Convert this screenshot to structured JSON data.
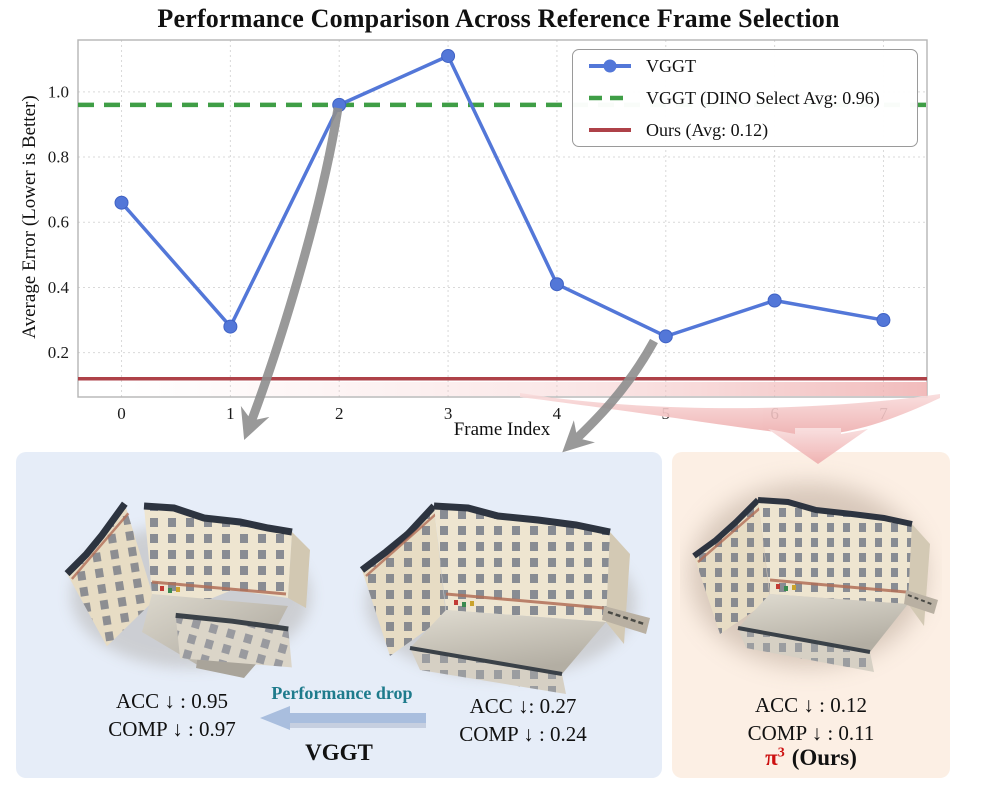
{
  "chart_data": {
    "type": "line",
    "title": "Performance Comparison Across Reference Frame Selection",
    "xlabel": "Frame Index",
    "ylabel": "Average Error (Lower is Better)",
    "x": [
      0,
      1,
      2,
      3,
      4,
      5,
      6,
      7
    ],
    "xticks": [
      0,
      1,
      2,
      3,
      4,
      5,
      6,
      7
    ],
    "yticks": [
      0.2,
      0.4,
      0.6,
      0.8,
      1.0
    ],
    "xlim": [
      -0.4,
      7.4
    ],
    "ylim": [
      0.064,
      1.159
    ],
    "grid": true,
    "legend_position": "upper right",
    "series": [
      {
        "name": "VGGT",
        "style": "solid-marker",
        "color": "#5377d8",
        "values": [
          0.66,
          0.28,
          0.96,
          1.11,
          0.41,
          0.25,
          0.36,
          0.3
        ]
      },
      {
        "name": "VGGT (DINO Select Avg: 0.96)",
        "style": "dashed",
        "color": "#3f9e46",
        "value": 0.96
      },
      {
        "name": "Ours (Avg: 0.12)",
        "style": "solid",
        "color": "#ae4148",
        "value": 0.12
      }
    ]
  },
  "panels": {
    "vggt": {
      "frame2_metrics": {
        "acc": "ACC ↓ : 0.95",
        "comp": "COMP ↓ : 0.97"
      },
      "frame5_metrics": {
        "acc": "ACC ↓: 0.27",
        "comp": "COMP ↓ : 0.24"
      },
      "performance_drop_label": "Performance drop",
      "method_label": "VGGT"
    },
    "ours": {
      "metrics": {
        "acc": "ACC ↓ : 0.12",
        "comp": "COMP ↓ : 0.11"
      },
      "method_pi": "π",
      "method_sup": "3",
      "method_rest": "(Ours)"
    }
  },
  "colors": {
    "vggt_line": "#5377d8",
    "dino_line": "#3f9e46",
    "ours_line": "#ae4148",
    "panel_blue": "#e6edf8",
    "panel_peach": "#fcefe4",
    "performance_drop_text": "#1e7b8c",
    "pi_red": "#cc1010",
    "annotation_arrow_gray": "#8e8e8e",
    "annotation_arrow_pink": "#f2b9b9",
    "perf_drop_arrow_blue": "#a9bede"
  }
}
